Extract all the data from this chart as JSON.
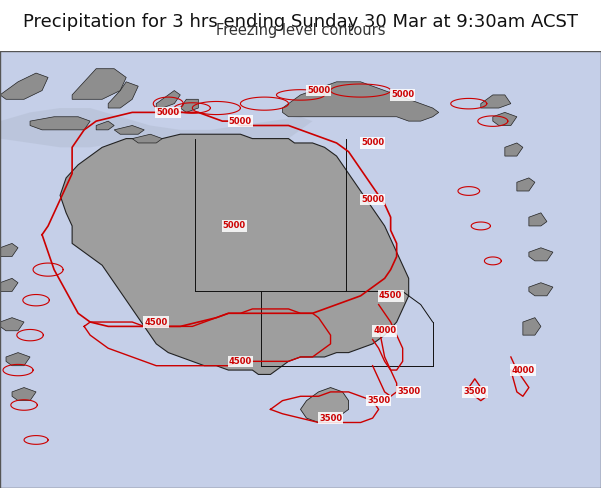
{
  "title": "Precipitation for 3 hrs ending Sunday 30 Mar at 9:30am ACST",
  "subtitle": "Freezing level contours",
  "title_fontsize": 13.0,
  "subtitle_fontsize": 10.5,
  "title_color": "#111111",
  "subtitle_color": "#333333",
  "bg_color": "#ffffff",
  "ocean_color": "#c5cfe8",
  "land_color": "#9e9e9e",
  "contour_red": "#cc0000",
  "fig_width": 6.01,
  "fig_height": 4.88,
  "dpi": 100
}
